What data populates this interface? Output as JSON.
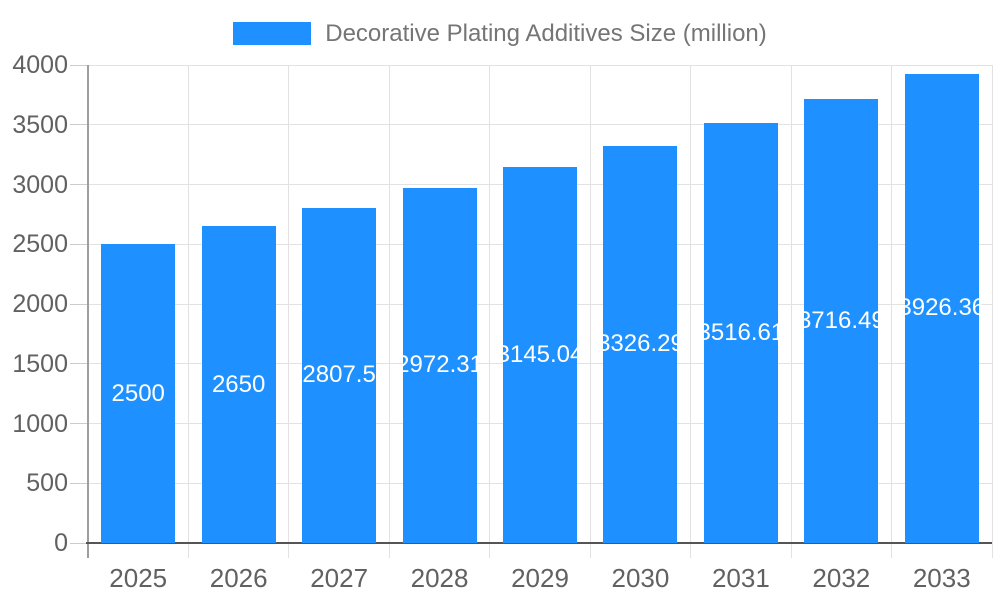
{
  "legend": {
    "label": "Decorative Plating Additives Size (million)"
  },
  "colors": {
    "bar": "#1e90ff",
    "bar_label": "#ffffff",
    "legend_text": "#757575",
    "axis_text": "#616161",
    "grid": "#e2e2e2",
    "tick": "#cccccc",
    "y_axis_line": "#9e9e9e",
    "baseline": "#555555",
    "background": "#ffffff"
  },
  "chart_data": {
    "type": "bar",
    "title": "Decorative Plating Additives Size (million)",
    "categories": [
      "2025",
      "2026",
      "2027",
      "2028",
      "2029",
      "2030",
      "2031",
      "2032",
      "2033"
    ],
    "values": [
      2500,
      2650,
      2807.5,
      2972.31,
      3145.04,
      3326.29,
      3516.61,
      3716.49,
      3926.36
    ],
    "value_labels": [
      "2500",
      "2650",
      "2807.5",
      "2972.31",
      "3145.04",
      "3326.29",
      "3516.61",
      "3716.49",
      "3926.36"
    ],
    "series_name": "Decorative Plating Additives Size (million)",
    "xlabel": "",
    "ylabel": "",
    "ylim": [
      0,
      4000
    ],
    "ytick_step": 500,
    "yticks": [
      "0",
      "500",
      "1000",
      "1500",
      "2000",
      "2500",
      "3000",
      "3500",
      "4000"
    ],
    "grid": true,
    "legend_position": "top"
  }
}
